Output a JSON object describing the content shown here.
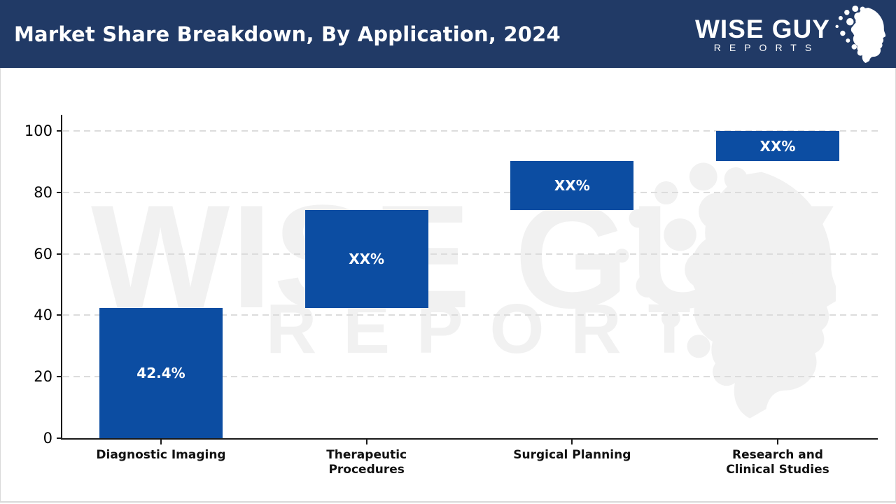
{
  "header": {
    "title": "Market Share Breakdown, By Application, 2024",
    "logo_line1": "WISE GUY",
    "logo_line2": "REPORTS",
    "bg_color": "#213a66"
  },
  "watermark": {
    "line1": "WISE GUY",
    "line2": "REPORTS"
  },
  "chart_data": {
    "type": "bar",
    "subtype": "waterfall",
    "title": "Market Share Breakdown, By Application, 2024",
    "categories": [
      "Diagnostic Imaging",
      "Therapeutic\nProcedures",
      "Surgical Planning",
      "Research and\nClinical Studies"
    ],
    "series": [
      {
        "name": "Market Share %",
        "starts": [
          0,
          42.4,
          74.2,
          90.2
        ],
        "values": [
          42.4,
          31.8,
          16.0,
          9.8
        ]
      }
    ],
    "bar_labels": [
      "42.4%",
      "XX%",
      "XX%",
      "XX%"
    ],
    "xlabel": "",
    "ylabel": "",
    "ylim": [
      0,
      100
    ],
    "yticks": [
      0,
      20,
      40,
      60,
      80,
      100
    ],
    "grid": "dashed horizontal",
    "legend": "none",
    "bar_color": "#0c4da2"
  }
}
